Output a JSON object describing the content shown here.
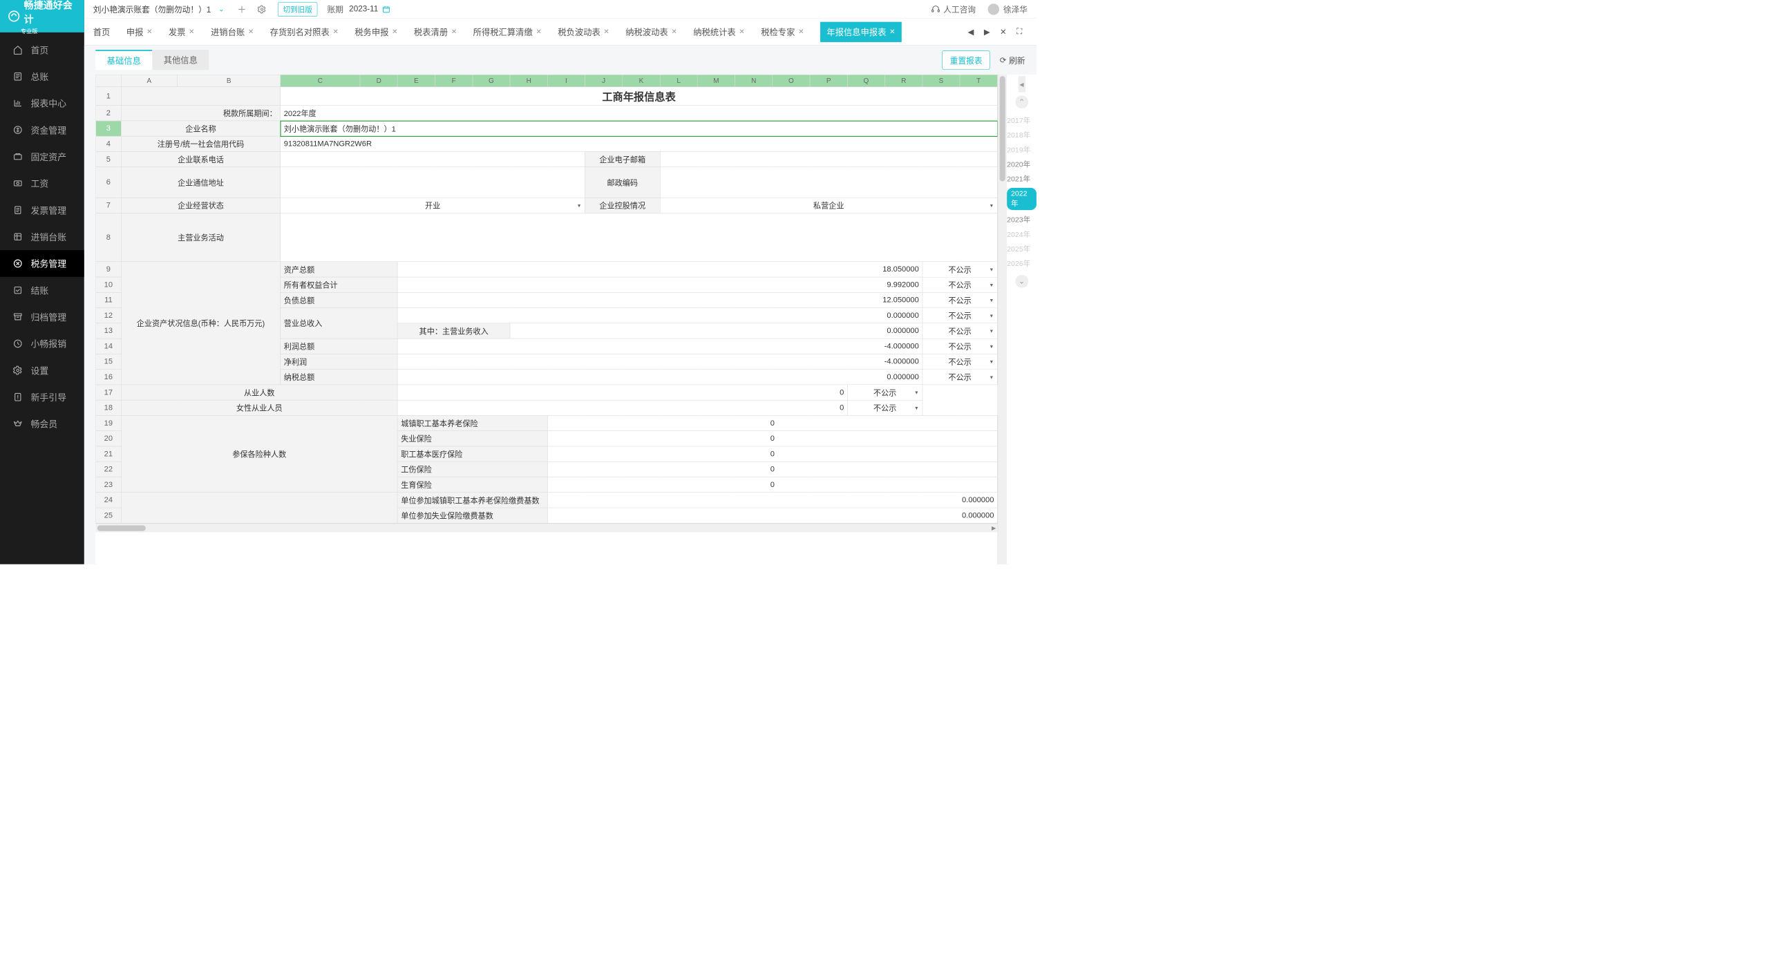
{
  "brand": {
    "name": "畅捷通好会计",
    "sub": "专业版"
  },
  "nav": [
    {
      "label": "首页",
      "icon": "home"
    },
    {
      "label": "总账",
      "icon": "ledger"
    },
    {
      "label": "报表中心",
      "icon": "report"
    },
    {
      "label": "资金管理",
      "icon": "fund"
    },
    {
      "label": "固定资产",
      "icon": "asset"
    },
    {
      "label": "工资",
      "icon": "salary"
    },
    {
      "label": "发票管理",
      "icon": "invoice"
    },
    {
      "label": "进销台账",
      "icon": "pos"
    },
    {
      "label": "税务管理",
      "icon": "tax",
      "active": true
    },
    {
      "label": "结账",
      "icon": "close"
    },
    {
      "label": "归档管理",
      "icon": "archive"
    },
    {
      "label": "小畅报销",
      "icon": "reimburse"
    },
    {
      "label": "设置",
      "icon": "settings"
    },
    {
      "label": "新手引导",
      "icon": "guide"
    },
    {
      "label": "畅会员",
      "icon": "vip"
    }
  ],
  "topbar": {
    "account": "刘小艳演示账套（勿删勿动！）1",
    "old_version": "切到旧版",
    "period_label": "账期",
    "period_value": "2023-11",
    "cs_label": "人工咨询",
    "user": "徐泽华"
  },
  "tabs": [
    {
      "label": "首页",
      "closeable": false
    },
    {
      "label": "申报",
      "closeable": true,
      "declaration": true
    },
    {
      "label": "发票",
      "closeable": true
    },
    {
      "label": "进销台账",
      "closeable": true
    },
    {
      "label": "存货别名对照表",
      "closeable": true
    },
    {
      "label": "税务申报",
      "closeable": true
    },
    {
      "label": "税表清册",
      "closeable": true
    },
    {
      "label": "所得税汇算清缴",
      "closeable": true
    },
    {
      "label": "税负波动表",
      "closeable": true
    },
    {
      "label": "纳税波动表",
      "closeable": true
    },
    {
      "label": "纳税统计表",
      "closeable": true
    },
    {
      "label": "税检专家",
      "closeable": true
    },
    {
      "label": "年报信息申报表",
      "closeable": true,
      "active": true
    }
  ],
  "subtabs": [
    {
      "label": "基础信息",
      "active": true
    },
    {
      "label": "其他信息"
    }
  ],
  "actions": {
    "reset": "重置报表",
    "refresh": "刷新"
  },
  "columns": [
    "",
    "A",
    "B",
    "C",
    "D",
    "E",
    "F",
    "G",
    "H",
    "I",
    "J",
    "K",
    "L",
    "M",
    "N",
    "O",
    "P",
    "Q",
    "R",
    "S",
    "T"
  ],
  "sheet": {
    "title": "工商年报信息表",
    "r2_label": "税款所属期间：",
    "r2_val": "2022年度",
    "r3_label": "企业名称",
    "r3_val": "刘小艳演示账套（勿删勿动！）1",
    "r4_label": "注册号/统一社会信用代码",
    "r4_val": "91320811MA7NGR2W6R",
    "r5_label": "企业联系电话",
    "r5_label2": "企业电子邮箱",
    "r6_label": "企业通信地址",
    "r6_label2": "邮政编码",
    "r7_label": "企业经营状态",
    "r7_val": "开业",
    "r7_label2": "企业控股情况",
    "r7_val2": "私营企业",
    "r8_label": "主营业务活动",
    "asset_group": "企业资产状况信息(币种：人民币万元)",
    "r9_label": "资产总额",
    "r9_val": "18.050000",
    "r9_pub": "不公示",
    "r10_label": "所有者权益合计",
    "r10_val": "9.992000",
    "r10_pub": "不公示",
    "r11_label": "负债总额",
    "r11_val": "12.050000",
    "r11_pub": "不公示",
    "r12_label": "营业总收入",
    "r12_val": "0.000000",
    "r12_pub": "不公示",
    "r13_label": "其中：主营业务收入",
    "r13_val": "0.000000",
    "r13_pub": "不公示",
    "r14_label": "利润总额",
    "r14_val": "-4.000000",
    "r14_pub": "不公示",
    "r15_label": "净利润",
    "r15_val": "-4.000000",
    "r15_pub": "不公示",
    "r16_label": "纳税总额",
    "r16_val": "0.000000",
    "r16_pub": "不公示",
    "r17_label": "从业人数",
    "r17_val": "0",
    "r17_pub": "不公示",
    "r18_label": "女性从业人员",
    "r18_val": "0",
    "r18_pub": "不公示",
    "ins_group": "参保各险种人数",
    "r19_label": "城镇职工基本养老保险",
    "r19_val": "0",
    "r20_label": "失业保险",
    "r20_val": "0",
    "r21_label": "职工基本医疗保险",
    "r21_val": "0",
    "r22_label": "工伤保险",
    "r22_val": "0",
    "r23_label": "生育保险",
    "r23_val": "0",
    "r24_label": "单位参加城镇职工基本养老保险缴费基数",
    "r24_val": "0.000000",
    "r25_label": "单位参加失业保险缴费基数",
    "r25_val": "0.000000"
  },
  "years": [
    {
      "y": "2017年",
      "dim": true
    },
    {
      "y": "2018年",
      "dim": true
    },
    {
      "y": "2019年",
      "dim": true
    },
    {
      "y": "2020年"
    },
    {
      "y": "2021年"
    },
    {
      "y": "2022年",
      "active": true
    },
    {
      "y": "2023年"
    },
    {
      "y": "2024年",
      "dim": true
    },
    {
      "y": "2025年",
      "dim": true
    },
    {
      "y": "2026年",
      "dim": true
    }
  ]
}
